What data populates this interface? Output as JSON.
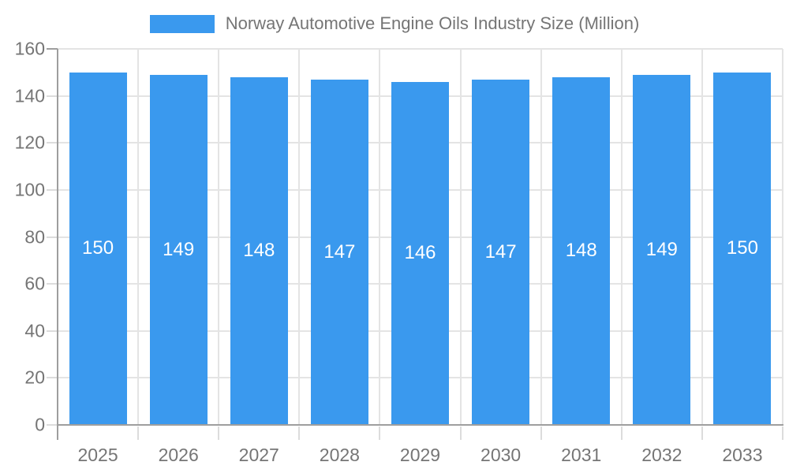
{
  "chart_data": {
    "type": "bar",
    "title": "Norway Automotive Engine Oils Industry Size (Million)",
    "categories": [
      "2025",
      "2026",
      "2027",
      "2028",
      "2029",
      "2030",
      "2031",
      "2032",
      "2033"
    ],
    "series": [
      {
        "name": "Norway Automotive Engine Oils Industry Size (Million)",
        "values": [
          150,
          149,
          148,
          147,
          146,
          147,
          148,
          149,
          150
        ]
      }
    ],
    "bar_labels": [
      "150",
      "149",
      "148",
      "147",
      "146",
      "147",
      "148",
      "149",
      "150"
    ],
    "xlabel": "",
    "ylabel": "",
    "ylim": [
      0,
      160
    ],
    "y_ticks": [
      0,
      20,
      40,
      60,
      80,
      100,
      120,
      140,
      160
    ],
    "grid": true,
    "legend_position": "top-center",
    "colors": {
      "bar": "#3a99ee",
      "bar_label_text": "#ffffff",
      "axis_line": "#9e9e9e",
      "gridline": "#e4e4e4",
      "tick": "#dcdcdc",
      "axis_text": "#757575",
      "legend_text": "#757575",
      "background": "#ffffff"
    }
  }
}
